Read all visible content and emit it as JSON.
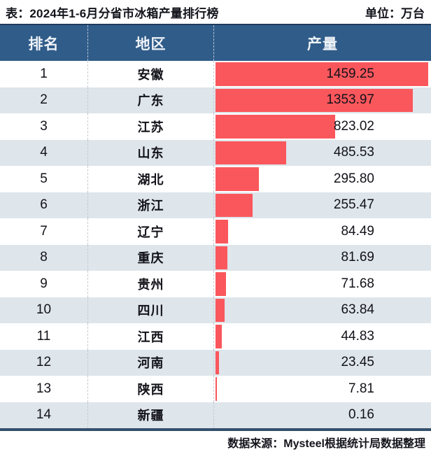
{
  "title_bar": {
    "title": "表：2024年1-6月分省市冰箱产量排行榜",
    "unit": "单位：万台"
  },
  "table": {
    "columns": [
      "排名",
      "地区",
      "产量"
    ],
    "rows": [
      {
        "rank": "1",
        "region": "安徽",
        "value": "1459.25"
      },
      {
        "rank": "2",
        "region": "广东",
        "value": "1353.97"
      },
      {
        "rank": "3",
        "region": "江苏",
        "value": "823.02"
      },
      {
        "rank": "4",
        "region": "山东",
        "value": "485.53"
      },
      {
        "rank": "5",
        "region": "湖北",
        "value": "295.80"
      },
      {
        "rank": "6",
        "region": "浙江",
        "value": "255.47"
      },
      {
        "rank": "7",
        "region": "辽宁",
        "value": "84.49"
      },
      {
        "rank": "8",
        "region": "重庆",
        "value": "81.69"
      },
      {
        "rank": "9",
        "region": "贵州",
        "value": "71.68"
      },
      {
        "rank": "10",
        "region": "四川",
        "value": "63.84"
      },
      {
        "rank": "11",
        "region": "江西",
        "value": "44.83"
      },
      {
        "rank": "12",
        "region": "河南",
        "value": "23.45"
      },
      {
        "rank": "13",
        "region": "陕西",
        "value": "7.81"
      },
      {
        "rank": "14",
        "region": "新疆",
        "value": "0.16"
      }
    ]
  },
  "footer": {
    "source": "数据来源：Mysteel根据统计局数据整理"
  },
  "colors": {
    "header_bg": "#305C89",
    "header_top_border": "#1E3A5C",
    "bar": "#FA575C",
    "stripe": "#DEE5EB",
    "bottom_border": "#33506B",
    "text": "#14141c"
  },
  "chart_data": {
    "type": "bar",
    "orientation": "horizontal",
    "title": "2024年1-6月分省市冰箱产量排行榜",
    "unit": "万台",
    "categories": [
      "安徽",
      "广东",
      "江苏",
      "山东",
      "湖北",
      "浙江",
      "辽宁",
      "重庆",
      "贵州",
      "四川",
      "江西",
      "河南",
      "陕西",
      "新疆"
    ],
    "values": [
      1459.25,
      1353.97,
      823.02,
      485.53,
      295.8,
      255.47,
      84.49,
      81.69,
      71.68,
      63.84,
      44.83,
      23.45,
      7.81,
      0.16
    ],
    "xlabel": "产量",
    "ylabel": "地区",
    "xlim": [
      0,
      1459.25
    ],
    "grid": false,
    "legend": false,
    "source": "数据来源：Mysteel根据统计局数据整理"
  }
}
